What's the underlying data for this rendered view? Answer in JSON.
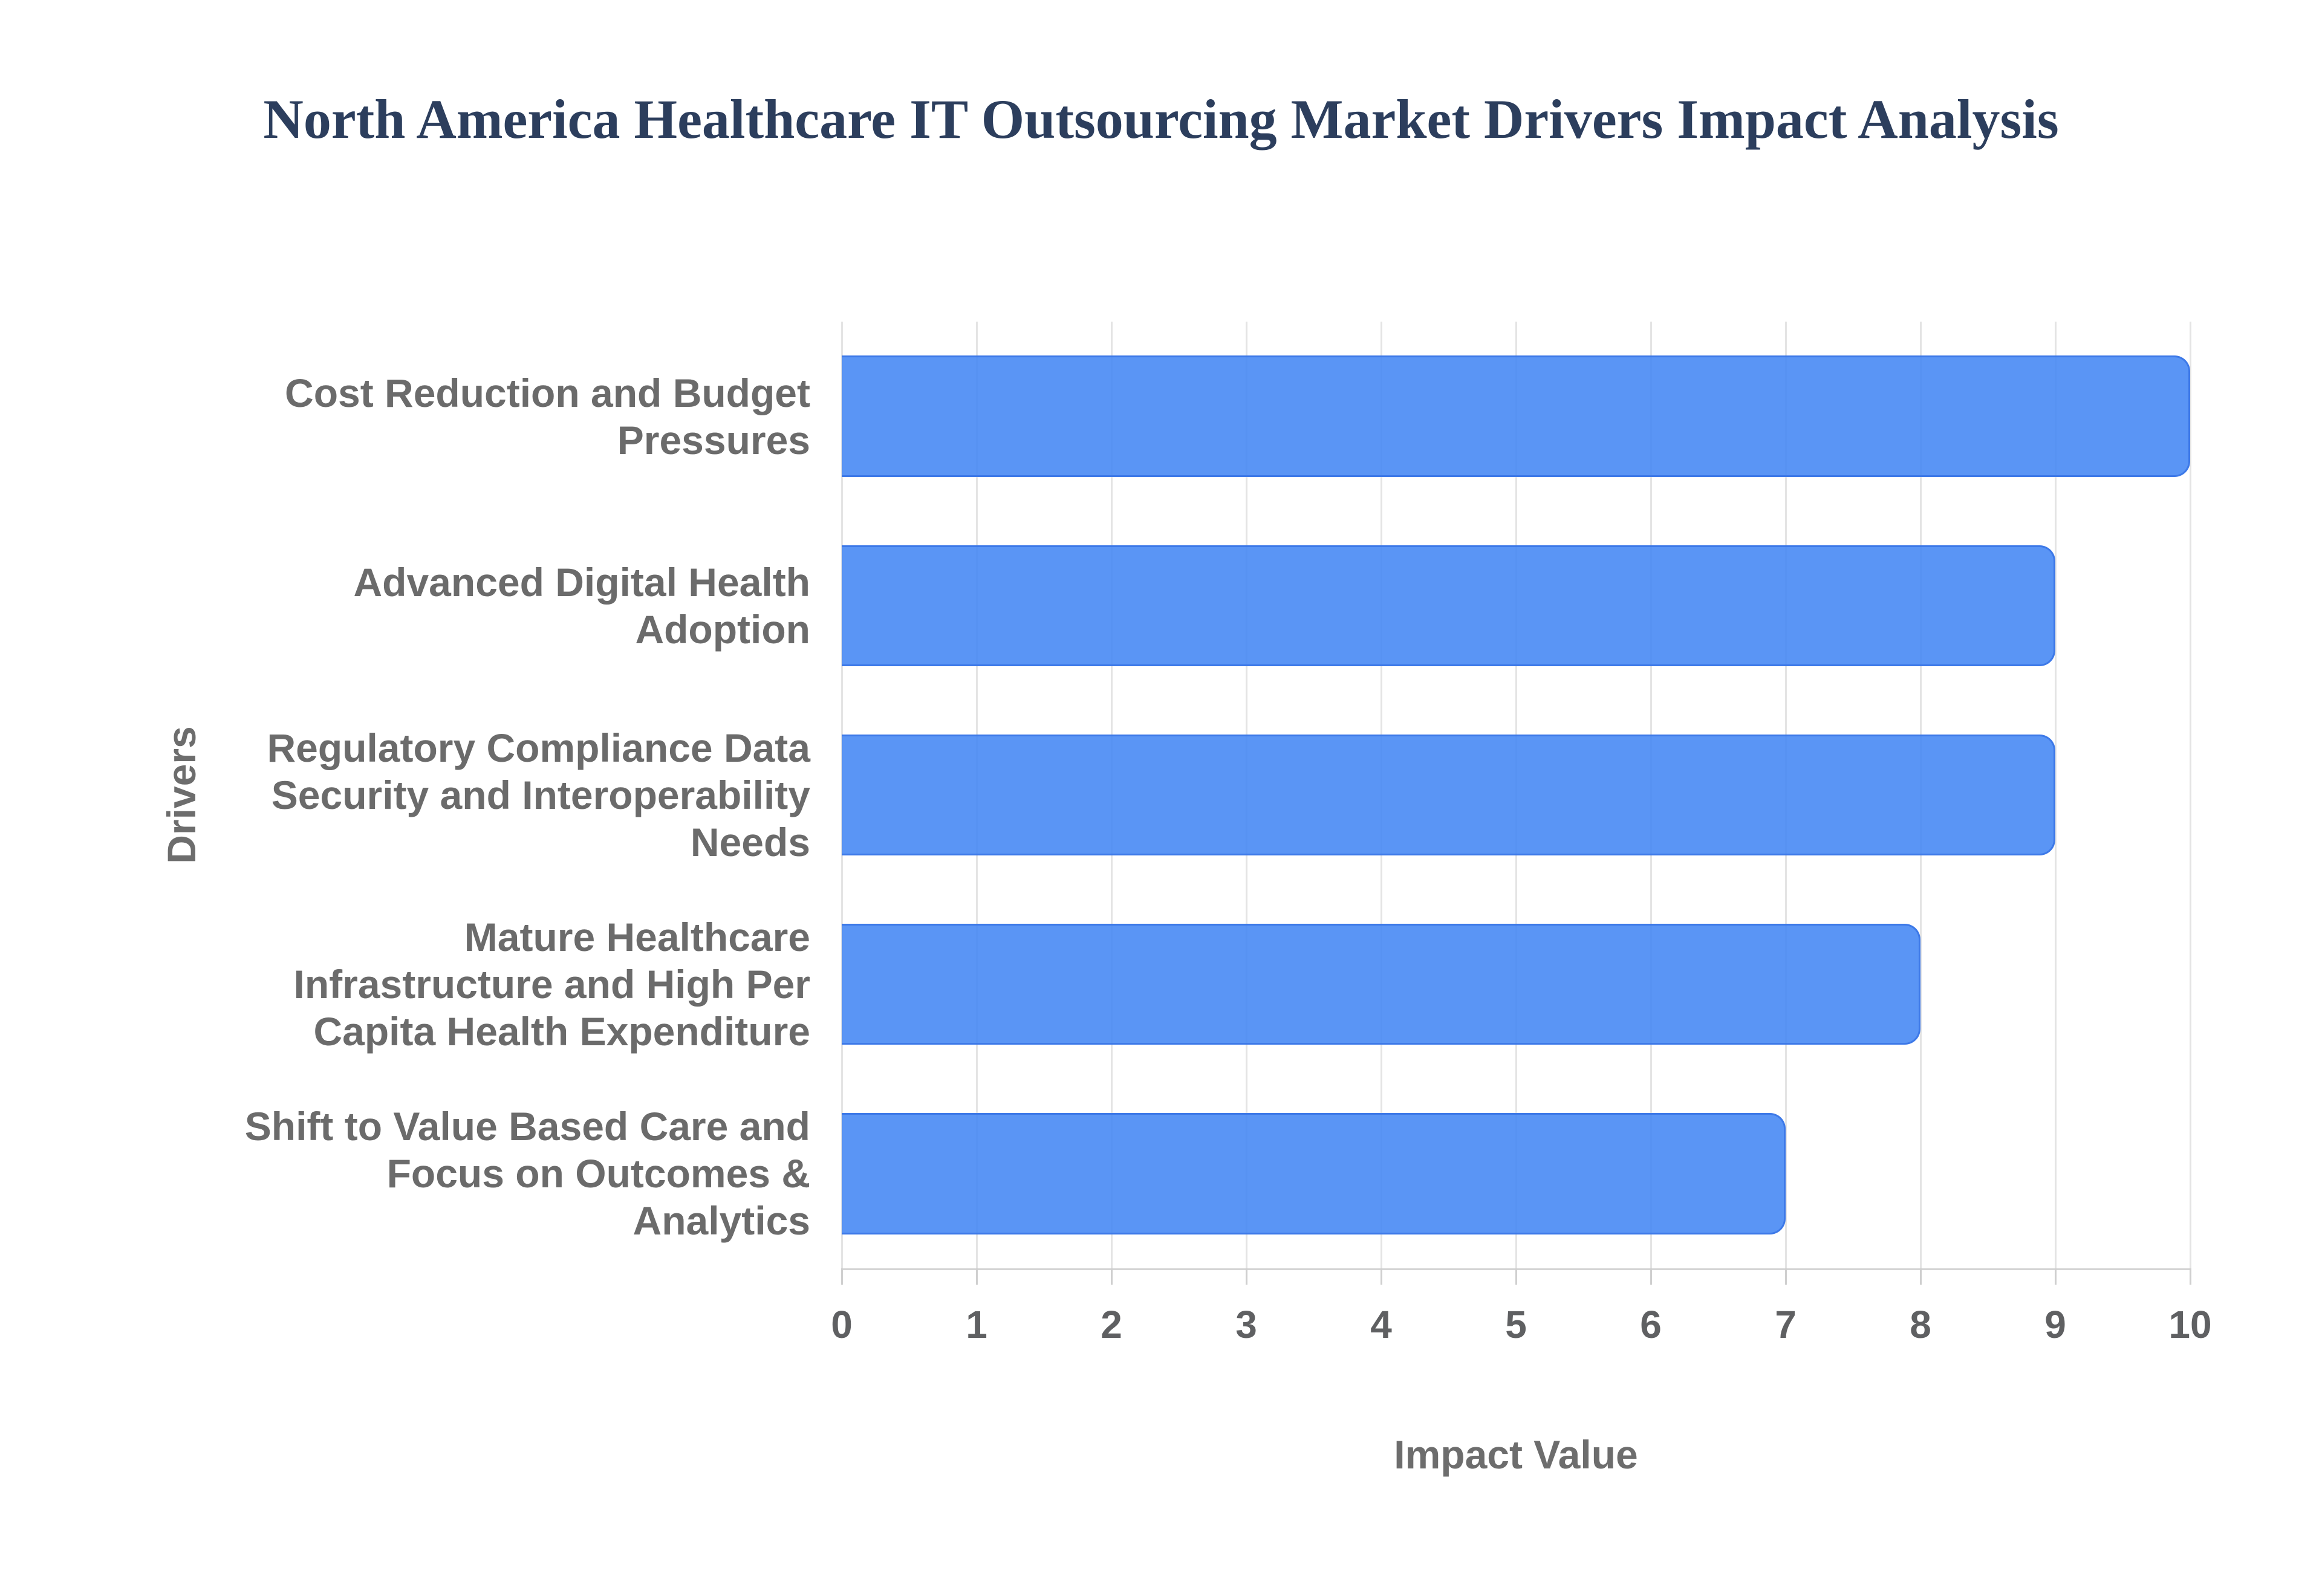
{
  "title": "North America Healthcare IT Outsourcing Market Drivers Impact Analysis",
  "chart_data": {
    "type": "bar",
    "orientation": "horizontal",
    "title": "North America Healthcare IT Outsourcing Market Drivers Impact Analysis",
    "categories": [
      "Cost Reduction and Budget Pressures",
      "Advanced Digital Health Adoption",
      "Regulatory Compliance Data Security and Interoperability Needs",
      "Mature Healthcare Infrastructure and High Per Capita Health Expenditure",
      "Shift to Value Based Care and Focus on Outcomes & Analytics"
    ],
    "values": [
      10,
      9,
      9,
      8,
      7
    ],
    "xlabel": "Impact Value",
    "ylabel": "Drivers",
    "xlim": [
      0,
      10
    ],
    "x_ticks": [
      0,
      1,
      2,
      3,
      4,
      5,
      6,
      7,
      8,
      9,
      10
    ],
    "grid": true,
    "legend": "none",
    "colors": {
      "bar_fill": "rgba(66,133,244,0.87)",
      "bar_border": "#3d79e8",
      "gridline": "#e4e4e4",
      "axis_line": "#d4d4d4",
      "tick_mark": "#cfcfcf",
      "tick_text": "#5f6062",
      "category_text": "#6b6b6b",
      "axis_title_text": "#6d6d6d",
      "title_text": "#2c3e5d"
    }
  }
}
